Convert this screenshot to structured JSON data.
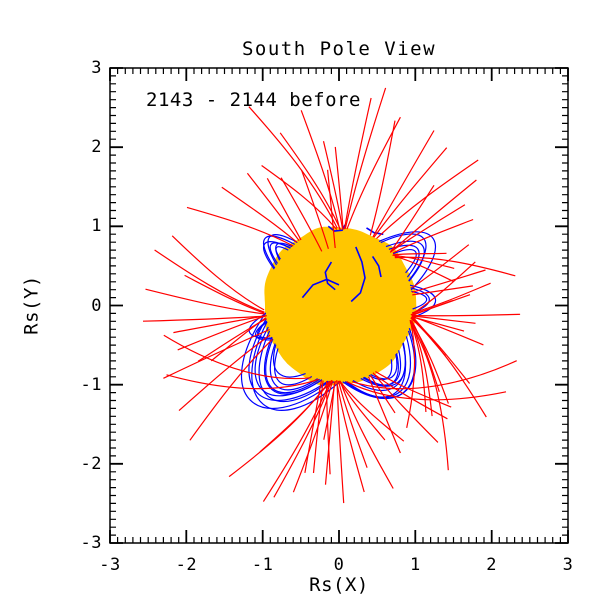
{
  "chart_data": {
    "type": "line",
    "title": "South Pole View",
    "annotation": "2143 - 2144 before",
    "xlabel": "Rs(X)",
    "ylabel": "Rs(Y)",
    "xlim": [
      -3,
      3
    ],
    "ylim": [
      -3,
      3
    ],
    "x_ticks": [
      -3,
      -2,
      -1,
      0,
      1,
      2,
      3
    ],
    "y_ticks": [
      -3,
      -2,
      -1,
      0,
      1,
      2,
      3
    ],
    "x_tick_labels": [
      "-3",
      "-2",
      "-1",
      "0",
      "1",
      "2",
      "3"
    ],
    "y_tick_labels": [
      "-3",
      "-2",
      "-1",
      "0",
      "1",
      "2",
      "3"
    ],
    "minor_tick_step": 0.1,
    "grid": false,
    "legend": "none",
    "colors": {
      "open_field_line": "#FF0000",
      "closed_field_line": "#0000FF",
      "sun_disk": "#FFC600",
      "axis": "#000000",
      "background": "#FFFFFF"
    },
    "sun": {
      "center": [
        0,
        0
      ],
      "radius": 1.0
    },
    "red_bundles": [
      {
        "name": "top-fan",
        "foot_angle": 88,
        "foot_spread": 7,
        "tip_angle": 96,
        "tip_spread": 52,
        "n": 9,
        "r_start": 0.97,
        "r_min": 1.9,
        "r_max": 2.85,
        "seed": 101
      },
      {
        "name": "top-right-up",
        "foot_angle": 62,
        "foot_spread": 5,
        "tip_angle": 58,
        "tip_spread": 26,
        "n": 4,
        "r_start": 0.97,
        "r_min": 1.8,
        "r_max": 2.6,
        "seed": 102
      },
      {
        "name": "upper-right-fan",
        "foot_angle": 43,
        "foot_spread": 6,
        "tip_angle": 28,
        "tip_spread": 42,
        "n": 8,
        "r_start": 0.96,
        "r_min": 1.5,
        "r_max": 2.45,
        "seed": 103
      },
      {
        "name": "upper-left",
        "foot_angle": 124,
        "foot_spread": 8,
        "tip_angle": 133,
        "tip_spread": 30,
        "n": 4,
        "r_start": 0.96,
        "r_min": 1.7,
        "r_max": 2.4,
        "seed": 104
      },
      {
        "name": "left-fan",
        "foot_angle": 187,
        "foot_spread": 6,
        "tip_angle": 182,
        "tip_spread": 46,
        "n": 9,
        "r_start": 0.97,
        "r_min": 1.6,
        "r_max": 2.6,
        "seed": 105
      },
      {
        "name": "left-down",
        "foot_angle": 203,
        "foot_spread": 8,
        "tip_angle": 212,
        "tip_spread": 22,
        "n": 3,
        "r_start": 0.97,
        "r_min": 2.0,
        "r_max": 2.6,
        "seed": 106
      },
      {
        "name": "swept-left",
        "foot_angle": 250,
        "foot_spread": 6,
        "tip_angle": 196,
        "tip_spread": 12,
        "n": 2,
        "r_start": 0.98,
        "r_min": 2.2,
        "r_max": 2.45,
        "seed": 107
      },
      {
        "name": "bottom-fan",
        "foot_angle": 267,
        "foot_spread": 9,
        "tip_angle": 266,
        "tip_spread": 58,
        "n": 13,
        "r_start": 0.96,
        "r_min": 1.6,
        "r_max": 2.8,
        "seed": 108
      },
      {
        "name": "bottom-left-verticals",
        "foot_angle": 258,
        "foot_spread": 5,
        "tip_angle": 261,
        "tip_spread": 9,
        "n": 3,
        "r_start": 0.97,
        "r_min": 2.1,
        "r_max": 2.5,
        "seed": 109
      },
      {
        "name": "bottom-right",
        "foot_angle": 297,
        "foot_spread": 6,
        "tip_angle": 306,
        "tip_spread": 28,
        "n": 5,
        "r_start": 0.97,
        "r_min": 1.5,
        "r_max": 2.2,
        "seed": 110
      },
      {
        "name": "swept-right",
        "foot_angle": 277,
        "foot_spread": 4,
        "tip_angle": 337,
        "tip_spread": 10,
        "n": 2,
        "r_start": 0.98,
        "r_min": 2.3,
        "r_max": 2.6,
        "seed": 111
      },
      {
        "name": "right-fan",
        "foot_angle": 351,
        "foot_spread": 7,
        "tip_angle": 337,
        "tip_spread": 76,
        "n": 18,
        "r_start": 0.96,
        "r_min": 1.4,
        "r_max": 2.6,
        "seed": 112
      },
      {
        "name": "right-up",
        "foot_angle": 10,
        "foot_spread": 5,
        "tip_angle": 15,
        "tip_spread": 16,
        "n": 3,
        "r_start": 0.97,
        "r_min": 1.6,
        "r_max": 2.1,
        "seed": 113
      },
      {
        "name": "top-disk",
        "foot_angle": 101,
        "foot_spread": 14,
        "tip_angle": 106,
        "tip_spread": 22,
        "n": 3,
        "r_start": 0.72,
        "r_min": 1.35,
        "r_max": 1.8,
        "seed": 114
      }
    ],
    "blue_loops": [
      {
        "name": "upper-left",
        "center_angle": 139,
        "foot_half_min": 4,
        "foot_half_max": 13,
        "r_apex_min": 1.08,
        "r_apex_max": 1.33,
        "n": 6,
        "seed": 201
      },
      {
        "name": "upper-right",
        "center_angle": 36,
        "foot_half_min": 8,
        "foot_half_max": 24,
        "r_apex_min": 1.15,
        "r_apex_max": 1.52,
        "n": 5,
        "seed": 202
      },
      {
        "name": "bottom-left",
        "center_angle": 228,
        "foot_half_min": 14,
        "foot_half_max": 42,
        "r_apex_min": 1.15,
        "r_apex_max": 1.68,
        "n": 10,
        "seed": 203
      },
      {
        "name": "bottom-right",
        "center_angle": 306,
        "foot_half_min": 9,
        "foot_half_max": 37,
        "r_apex_min": 1.1,
        "r_apex_max": 1.42,
        "n": 10,
        "seed": 204
      },
      {
        "name": "right",
        "center_angle": 4,
        "foot_half_min": 6,
        "foot_half_max": 13,
        "r_apex_min": 1.1,
        "r_apex_max": 1.28,
        "n": 3,
        "seed": 205
      },
      {
        "name": "left",
        "center_angle": 196,
        "foot_half_min": 5,
        "foot_half_max": 11,
        "r_apex_min": 1.08,
        "r_apex_max": 1.22,
        "n": 3,
        "seed": 206
      }
    ],
    "disk_arcs": [
      {
        "points": [
          [
            -0.1,
            0.55
          ],
          [
            -0.18,
            0.42
          ],
          [
            -0.15,
            0.28
          ],
          [
            -0.05,
            0.2
          ]
        ]
      },
      {
        "points": [
          [
            0.22,
            0.74
          ],
          [
            0.3,
            0.55
          ],
          [
            0.34,
            0.35
          ],
          [
            0.28,
            0.16
          ],
          [
            0.16,
            0.05
          ]
        ]
      },
      {
        "points": [
          [
            -0.48,
            0.1
          ],
          [
            -0.34,
            0.26
          ],
          [
            -0.16,
            0.33
          ],
          [
            0.0,
            0.26
          ]
        ]
      },
      {
        "points": [
          [
            0.36,
            0.98
          ],
          [
            0.46,
            0.92
          ],
          [
            0.58,
            0.9
          ]
        ]
      },
      {
        "points": [
          [
            -0.14,
            1.0
          ],
          [
            -0.06,
            0.94
          ],
          [
            0.04,
            0.95
          ],
          [
            0.08,
            1.02
          ]
        ]
      },
      {
        "points": [
          [
            0.44,
            0.62
          ],
          [
            0.52,
            0.5
          ],
          [
            0.55,
            0.36
          ]
        ]
      }
    ]
  }
}
